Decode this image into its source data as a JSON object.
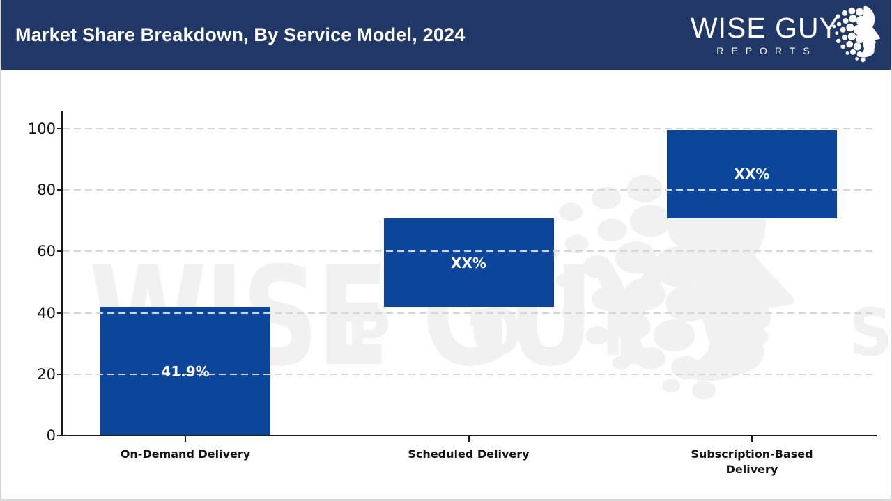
{
  "header": {
    "title": "Market Share Breakdown, By Service Model, 2024",
    "logo_line1": "WISE GUY",
    "logo_line2": "REPORTS",
    "bg_color": "#213765"
  },
  "watermark": {
    "line1": "WISE GUY",
    "line2": "R E P O R T S"
  },
  "chart_data": {
    "type": "bar",
    "subtype": "floating-segment-breakdown",
    "title": "Market Share Breakdown, By Service Model, 2024",
    "categories": [
      "On-Demand Delivery",
      "Scheduled Delivery",
      "Subscription-Based Delivery"
    ],
    "segments": [
      {
        "category": "On-Demand Delivery",
        "start": 0,
        "end": 41.9,
        "label": "41.9%"
      },
      {
        "category": "Scheduled Delivery",
        "start": 41.9,
        "end": 70.7,
        "label": "XX%"
      },
      {
        "category": "Subscription-Based Delivery",
        "start": 70.7,
        "end": 99.6,
        "label": "XX%"
      }
    ],
    "yticks": [
      0,
      20,
      40,
      60,
      80,
      100
    ],
    "ylim": [
      0,
      105
    ],
    "xlabel": "",
    "ylabel": "",
    "grid": "dashed-horizontal-over-bars",
    "bar_color": "#0c459a",
    "bar_label_color": "#ffffff",
    "axis_color": "#1a1a1a",
    "grid_color": "#d6d6d6",
    "watermark_color": "#f1f1f2",
    "legend": "none"
  }
}
